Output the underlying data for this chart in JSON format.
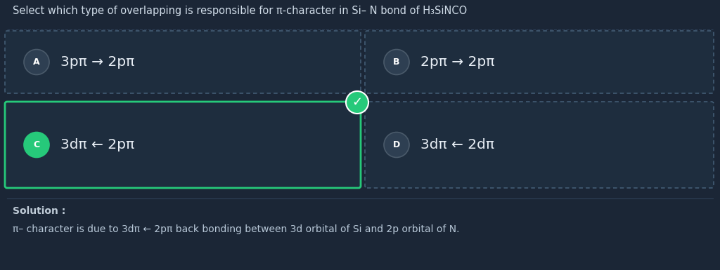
{
  "bg_color": "#1b2636",
  "title": "Select which type of overlapping is responsible for π-character in Si– N bond of H₃SiNCO",
  "options": [
    {
      "label": "A",
      "text": "3pπ → 2pπ",
      "correct": false
    },
    {
      "label": "B",
      "text": "2pπ → 2pπ",
      "correct": false
    },
    {
      "label": "C",
      "text": "3dπ ← 2pπ",
      "correct": true
    },
    {
      "label": "D",
      "text": "3dπ ← 2dπ",
      "correct": false
    }
  ],
  "solution_label": "Solution :",
  "solution_text": "π– character is due to 3dπ ← 2pπ back bonding between 3d orbital of Si and 2p orbital of N.",
  "box_fill": "#1e2d3e",
  "box_border_dashed": "#4a6680",
  "box_border_correct": "#26c97a",
  "circle_normal_fill": "#2e3f52",
  "circle_normal_edge": "#4a5a6a",
  "circle_correct_fill": "#26c97a",
  "text_color": "#e8eef5",
  "title_color": "#d0dce8",
  "solution_label_color": "#c0ccd8",
  "solution_text_color": "#b8c8d8",
  "sep_color": "#2e4058"
}
